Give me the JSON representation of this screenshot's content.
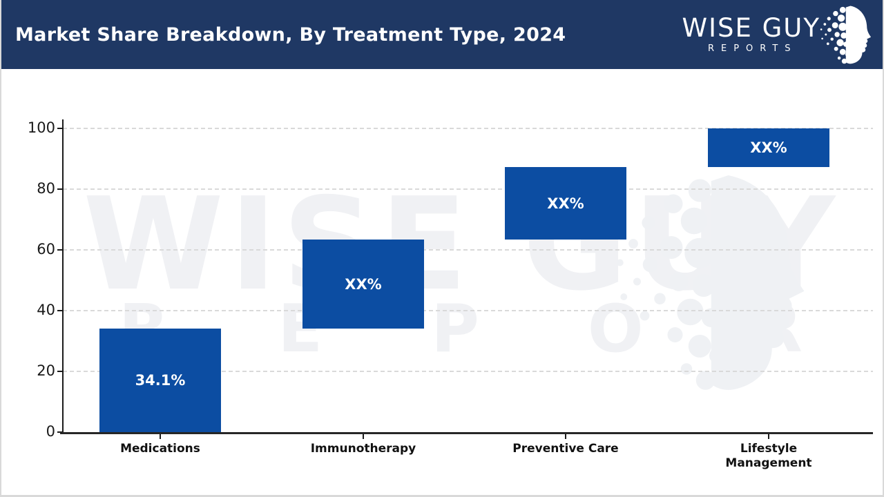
{
  "header": {
    "title": "Market Share Breakdown, By Treatment Type, 2024",
    "logo_line1": "WISE GUY",
    "logo_line2": "REPORTS"
  },
  "watermark": {
    "line1": "WISE GUY",
    "line2": "R E P O R T S"
  },
  "chart_data": {
    "type": "bar",
    "variant": "floating-waterfall",
    "title": "Market Share Breakdown, By Treatment Type, 2024",
    "categories": [
      "Medications",
      "Immunotherapy",
      "Preventive Care",
      "Lifestyle Management"
    ],
    "segments": [
      {
        "category": "Medications",
        "start": 0,
        "end": 34.1,
        "label": "34.1%"
      },
      {
        "category": "Immunotherapy",
        "start": 34.1,
        "end": 63.3,
        "label": "XX%"
      },
      {
        "category": "Preventive Care",
        "start": 63.3,
        "end": 87.3,
        "label": "XX%"
      },
      {
        "category": "Lifestyle Management",
        "start": 87.3,
        "end": 100,
        "label": "XX%"
      }
    ],
    "ylim": [
      0,
      100
    ],
    "yticks": [
      0,
      20,
      40,
      60,
      80,
      100
    ],
    "xlabel": "",
    "ylabel": "",
    "grid": "horizontal-dashed",
    "legend": "none",
    "colors": {
      "bar": "#0c4da2",
      "bar_label": "#ffffff",
      "axis": "#1a1a1a",
      "gridline": "#d9d9d9",
      "header_bg": "#1f3864",
      "watermark": "#f0f1f4"
    }
  }
}
